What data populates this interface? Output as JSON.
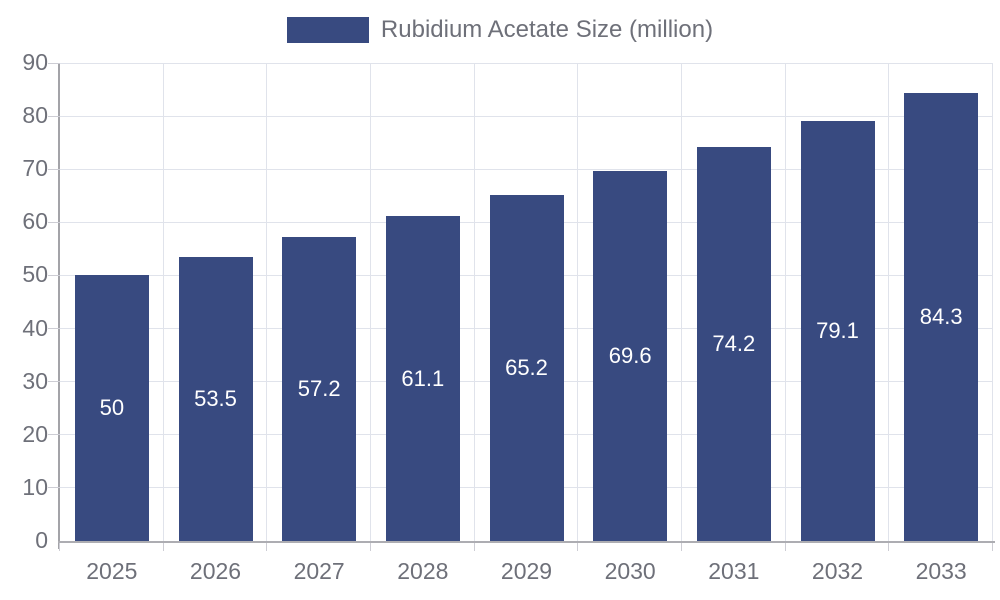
{
  "legend": {
    "label": "Rubidium Acetate Size (million)"
  },
  "chart_data": {
    "type": "bar",
    "title": "Rubidium Acetate Size (million)",
    "categories": [
      "2025",
      "2026",
      "2027",
      "2028",
      "2029",
      "2030",
      "2031",
      "2032",
      "2033"
    ],
    "values": [
      50,
      53.5,
      57.2,
      61.1,
      65.2,
      69.6,
      74.2,
      79.1,
      84.3
    ],
    "value_labels": [
      "50",
      "53.5",
      "57.2",
      "61.1",
      "65.2",
      "69.6",
      "74.2",
      "79.1",
      "84.3"
    ],
    "xlabel": "",
    "ylabel": "",
    "ylim": [
      0,
      90
    ],
    "ytick_step": 10,
    "yticks": [
      "0",
      "10",
      "20",
      "30",
      "40",
      "50",
      "60",
      "70",
      "80",
      "90"
    ],
    "grid": true,
    "legend_position": "top",
    "colors": {
      "bar": "#384A80",
      "bar_value_label": "#ffffff",
      "axis_label": "#6E7079",
      "gridline": "#E0E3EB",
      "axis_line": "#A3A3A8",
      "background": "#ffffff"
    }
  }
}
